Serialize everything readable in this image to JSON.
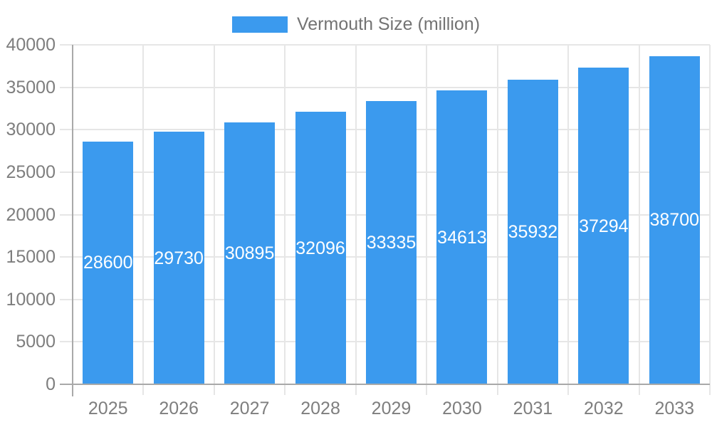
{
  "legend": {
    "items": [
      {
        "label": "Vermouth Size (million)",
        "color": "#3b9aee"
      }
    ]
  },
  "chart_data": {
    "type": "bar",
    "title": "",
    "xlabel": "",
    "ylabel": "",
    "legend": [
      "Vermouth Size (million)"
    ],
    "legend_position": "top-center",
    "categories": [
      "2025",
      "2026",
      "2027",
      "2028",
      "2029",
      "2030",
      "2031",
      "2032",
      "2033"
    ],
    "series": [
      {
        "name": "Vermouth Size (million)",
        "color": "#3b9aee",
        "values": [
          28600,
          29730,
          30895,
          32096,
          33335,
          34613,
          35932,
          37294,
          38700
        ]
      }
    ],
    "value_labels_shown": true,
    "y_axis": {
      "min": 0,
      "max": 40000,
      "tick_step": 5000,
      "ticks": [
        0,
        5000,
        10000,
        15000,
        20000,
        25000,
        30000,
        35000,
        40000
      ]
    },
    "grid": {
      "horizontal": true,
      "vertical": true
    },
    "colors": {
      "bar": "#3b9aee",
      "value_label_text": "#ffffff",
      "axis_line": "#a9a9a9",
      "gridline": "#e6e6e6",
      "tick_label_text": "#7e7e7e",
      "legend_text": "#737373",
      "background": "#ffffff"
    }
  }
}
